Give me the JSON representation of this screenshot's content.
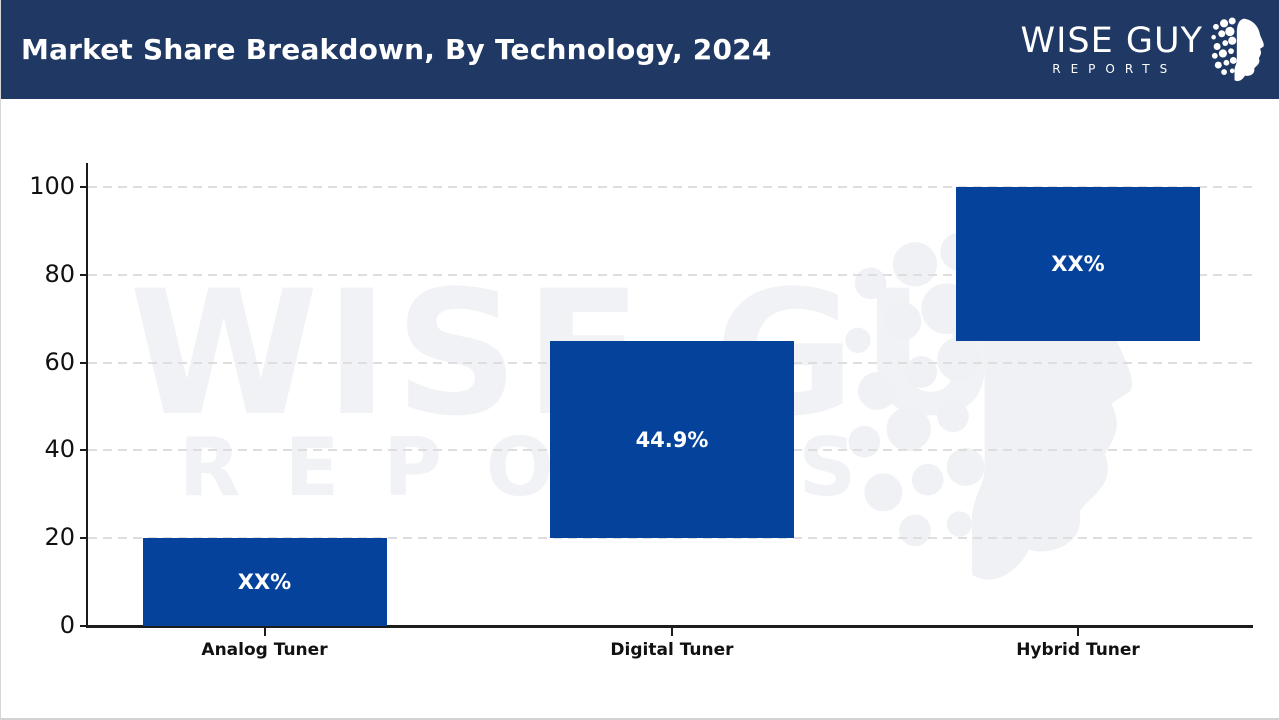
{
  "header": {
    "title": "Market Share Breakdown, By Technology, 2024",
    "logo": {
      "line1": "WISE GUY",
      "line2": "REPORTS"
    }
  },
  "watermark": {
    "line1": "WISE GUY",
    "line2": "REPORTS"
  },
  "colors": {
    "header_bg": "#1f3864",
    "bar": "#05429b",
    "grid": "#dedede",
    "axis": "#1c1c1c",
    "bar_label": "#ffffff"
  },
  "chart_data": {
    "type": "bar",
    "subtype": "waterfall",
    "title": "Market Share Breakdown, By Technology, 2024",
    "categories": [
      "Analog Tuner",
      "Digital Tuner",
      "Hybrid Tuner"
    ],
    "segments": [
      {
        "category": "Analog Tuner",
        "start": 0,
        "end": 20,
        "value_label": "XX%"
      },
      {
        "category": "Digital Tuner",
        "start": 20,
        "end": 64.9,
        "value_label": "44.9%"
      },
      {
        "category": "Hybrid Tuner",
        "start": 64.9,
        "end": 100,
        "value_label": "XX%"
      }
    ],
    "xlabel": "",
    "ylabel": "",
    "ylim": [
      0,
      105
    ],
    "yticks": [
      0,
      20,
      40,
      60,
      80,
      100
    ],
    "grid": "horizontal-dashed",
    "legend": "none",
    "bar_color": "#05429b"
  }
}
